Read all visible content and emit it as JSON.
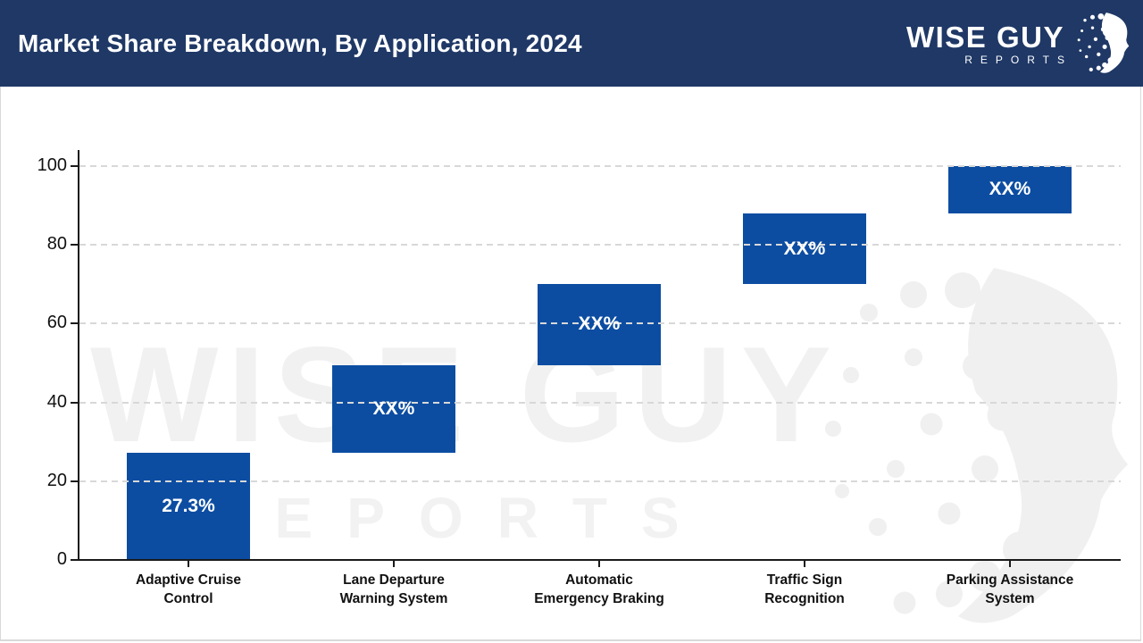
{
  "header": {
    "title": "Market Share Breakdown, By Application, 2024",
    "brand_line1": "WISE GUY",
    "brand_line2": "REPORTS"
  },
  "watermark": {
    "line1": "WISE GUY",
    "line2": "REPORTS"
  },
  "colors": {
    "header_bg": "#1f3866",
    "bar": "#0c4da2",
    "grid": "#d8d8d8",
    "axis": "#1a1a1a",
    "bar_label": "#ffffff",
    "watermark": "#f1f1f1"
  },
  "chart_data": {
    "type": "bar",
    "subtype": "waterfall",
    "title": "Market Share Breakdown, By Application, 2024",
    "xlabel": "",
    "ylabel": "",
    "ylim": [
      0,
      104
    ],
    "yticks": [
      0,
      20,
      40,
      60,
      80,
      100
    ],
    "grid": "horizontal-dashed",
    "legend": "none",
    "categories": [
      {
        "line1": "Adaptive Cruise",
        "line2": "Control"
      },
      {
        "line1": "Lane Departure",
        "line2": "Warning System"
      },
      {
        "line1": "Automatic",
        "line2": "Emergency Braking"
      },
      {
        "line1": "Traffic Sign",
        "line2": "Recognition"
      },
      {
        "line1": "Parking Assistance",
        "line2": "System"
      }
    ],
    "segments": [
      {
        "category": "Adaptive Cruise Control",
        "start": 0,
        "end": 27.3,
        "label": "27.3%"
      },
      {
        "category": "Lane Departure Warning System",
        "start": 27.3,
        "end": 49.5,
        "label": "XX%"
      },
      {
        "category": "Automatic Emergency Braking",
        "start": 49.5,
        "end": 70,
        "label": "XX%"
      },
      {
        "category": "Traffic Sign Recognition",
        "start": 70,
        "end": 88,
        "label": "XX%"
      },
      {
        "category": "Parking Assistance System",
        "start": 88,
        "end": 100,
        "label": "XX%"
      }
    ]
  }
}
